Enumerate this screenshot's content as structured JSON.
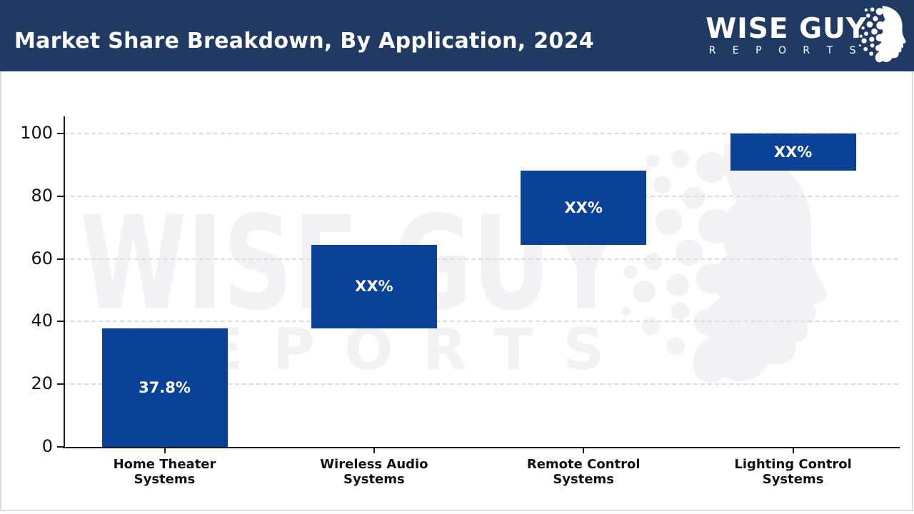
{
  "header": {
    "title": "Market Share Breakdown, By Application, 2024",
    "logo": {
      "name_top": "WISE GUY",
      "name_bottom": "R E P O R T S"
    }
  },
  "watermark": {
    "big_text": "WISE GUY",
    "small_text": "REPORTS"
  },
  "colors": {
    "header_bg": "#213A64",
    "bar": "#0A4298",
    "grid": "#DCDCDC",
    "axis": "#1A1A1A",
    "bar_label": "#FFFFFF",
    "watermark": "#F2F2F4"
  },
  "chart_data": {
    "type": "bar",
    "variant": "waterfall",
    "title": "Market Share Breakdown, By Application, 2024",
    "categories": [
      [
        "Home Theater",
        "Systems"
      ],
      [
        "Wireless Audio",
        "Systems"
      ],
      [
        "Remote Control",
        "Systems"
      ],
      [
        "Lighting Control",
        "Systems"
      ]
    ],
    "segments": [
      {
        "category": "Home Theater Systems",
        "start": 0,
        "end": 37.8,
        "label": "37.8%"
      },
      {
        "category": "Wireless Audio Systems",
        "start": 37.8,
        "end": 64.5,
        "label": "XX%"
      },
      {
        "category": "Remote Control Systems",
        "start": 64.5,
        "end": 88.2,
        "label": "XX%"
      },
      {
        "category": "Lighting Control Systems",
        "start": 88.2,
        "end": 100,
        "label": "XX%"
      }
    ],
    "xlabel": "",
    "ylabel": "",
    "yticks": [
      0,
      20,
      40,
      60,
      80,
      100
    ],
    "ylim": [
      0,
      105.5
    ],
    "grid": "horizontal-dashed",
    "legend": "none"
  }
}
